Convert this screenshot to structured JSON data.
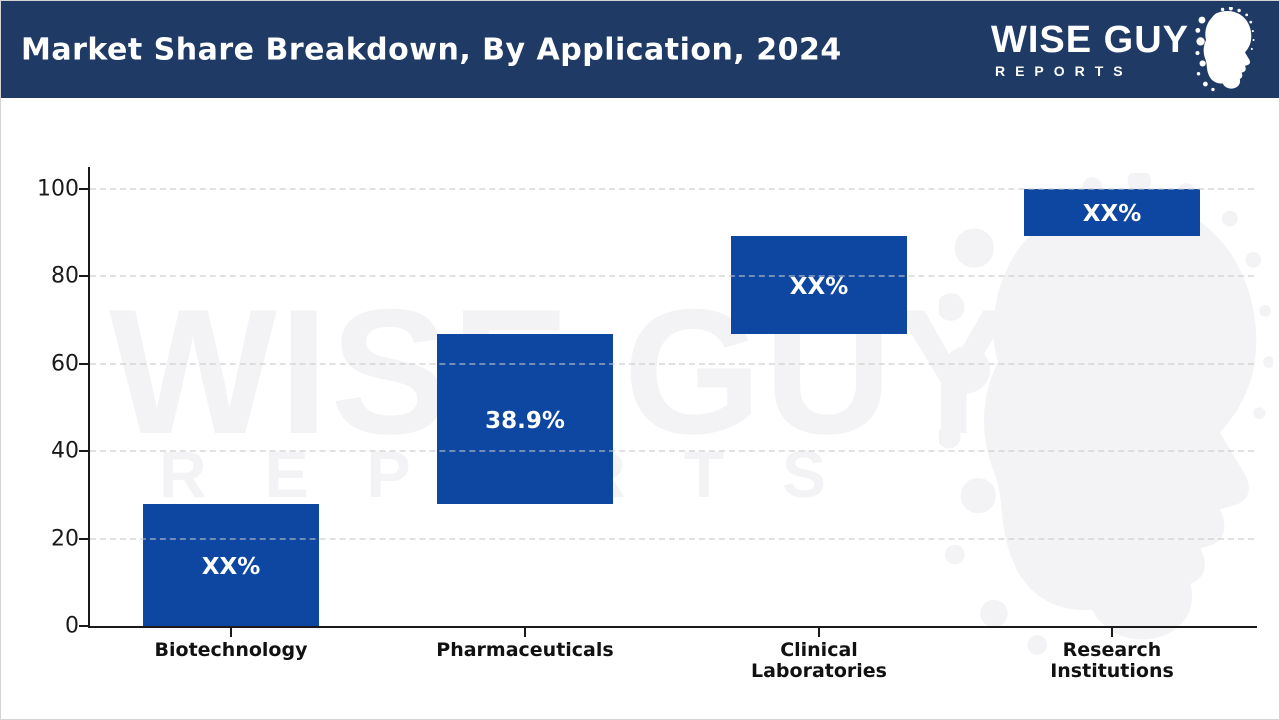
{
  "header": {
    "title": "Market Share Breakdown, By Application, 2024",
    "logo": {
      "line1": "WISE GUY",
      "line2": "REPORTS"
    }
  },
  "watermark": {
    "line1": "WISE GUY",
    "line2": "REPORTS"
  },
  "colors": {
    "header_bg": "#203a66",
    "bar": "#0d47a1",
    "bar_label_text": "#ffffff",
    "axis": "#1a1a1a",
    "gridline": "rgba(200,200,200,0.55)",
    "watermark": "#f3f3f5",
    "frame_border": "#d4d4d4"
  },
  "chart_data": {
    "type": "bar",
    "subtype": "waterfall-floating-bars",
    "title": "Market Share Breakdown, By Application, 2024",
    "categories": [
      "Biotechnology",
      "Pharmaceuticals",
      "Clinical Laboratories",
      "Research Institutions"
    ],
    "category_label_lines": [
      [
        "Biotechnology"
      ],
      [
        "Pharmaceuticals"
      ],
      [
        "Clinical",
        "Laboratories"
      ],
      [
        "Research",
        "Institutions"
      ]
    ],
    "segments": [
      {
        "category": "Biotechnology",
        "start": 0,
        "end": 27.8,
        "label": "XX%"
      },
      {
        "category": "Pharmaceuticals",
        "start": 27.8,
        "end": 66.7,
        "label": "38.9%"
      },
      {
        "category": "Clinical Laboratories",
        "start": 66.7,
        "end": 89.1,
        "label": "XX%"
      },
      {
        "category": "Research Institutions",
        "start": 89.1,
        "end": 100,
        "label": "XX%"
      }
    ],
    "y_ticks": [
      0,
      20,
      40,
      60,
      80,
      100
    ],
    "ylim": [
      0,
      105
    ],
    "xlabel": "",
    "ylabel": "",
    "grid": "horizontal dashed, drawn above bars",
    "legend": "none",
    "bar_color": "#0d47a1"
  }
}
